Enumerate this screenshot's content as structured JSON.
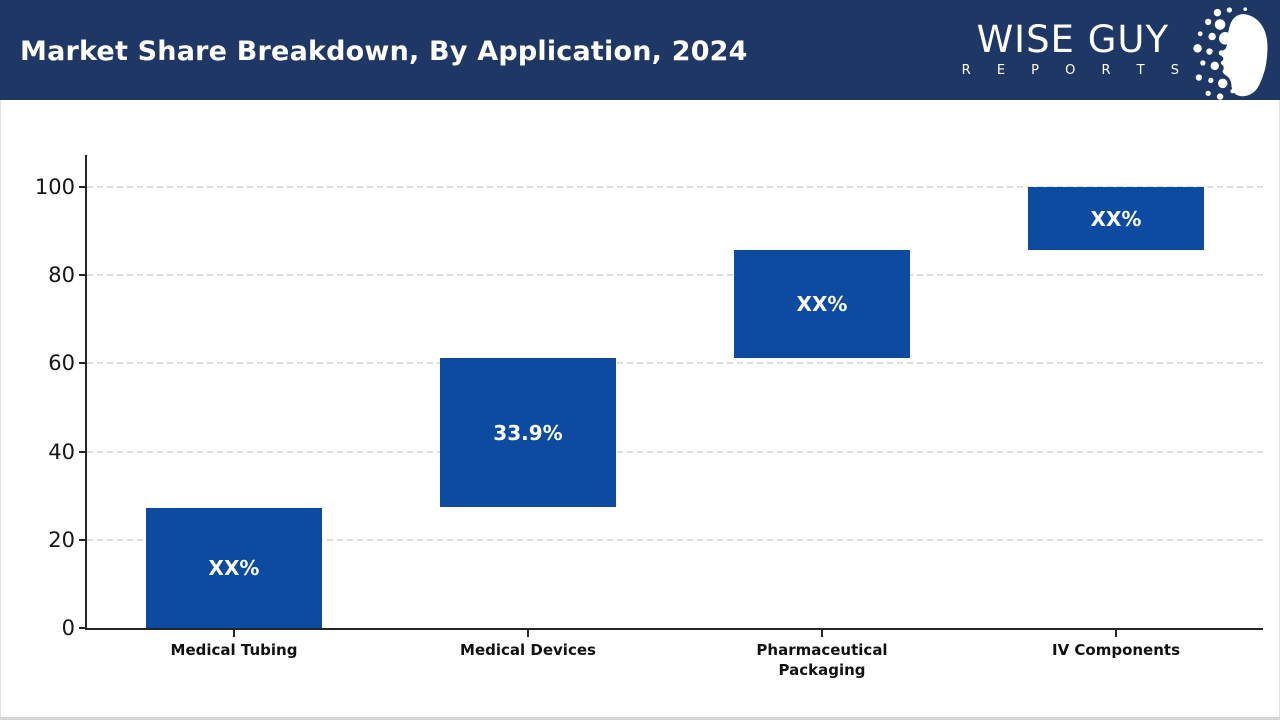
{
  "header": {
    "title": "Market Share Breakdown, By Application, 2024",
    "bg_color": "#1f3765",
    "logo": {
      "line1": "WISE GUY",
      "line2": "R E P O R T S"
    }
  },
  "watermark": {
    "line1": "WISE GUY",
    "line2": "R E P O R T S"
  },
  "chart_data": {
    "type": "bar",
    "subtype": "waterfall",
    "title": "Market Share Breakdown, By Application, 2024",
    "categories": [
      "Medical Tubing",
      "Medical Devices",
      "Pharmaceutical Packaging",
      "IV Components"
    ],
    "segments": [
      {
        "category": "Medical Tubing",
        "label": "XX%",
        "start": 0,
        "end": 27.3
      },
      {
        "category": "Medical Devices",
        "label": "33.9%",
        "start": 27.3,
        "end": 61.2
      },
      {
        "category": "Pharmaceutical Packaging",
        "label": "XX%",
        "start": 61.2,
        "end": 85.7
      },
      {
        "category": "IV Components",
        "label": "XX%",
        "start": 85.7,
        "end": 100
      }
    ],
    "xlabel": "",
    "ylabel": "",
    "ylim": [
      0,
      100
    ],
    "yticks": [
      0,
      20,
      40,
      60,
      80,
      100
    ],
    "grid": "horizontal-dashed",
    "legend": "none",
    "bar_color": "#0c4ba0",
    "bar_label_color": "#ffffff"
  }
}
